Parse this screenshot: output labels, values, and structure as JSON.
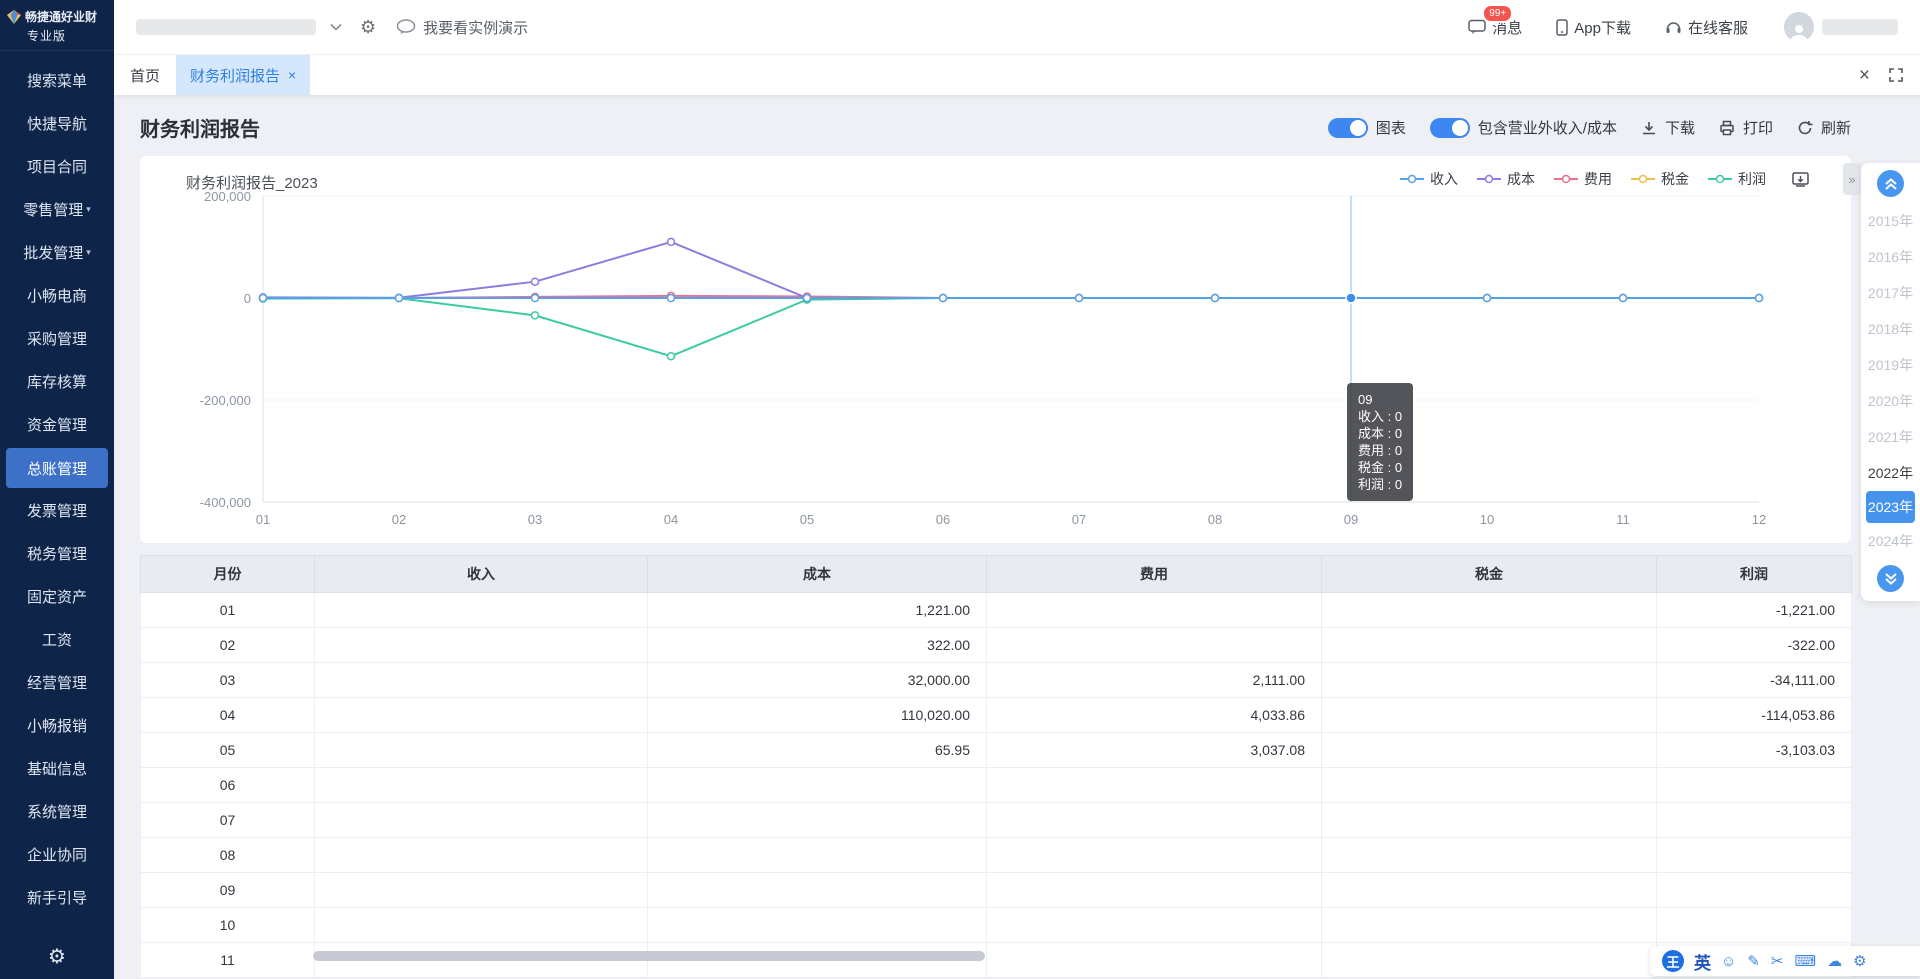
{
  "sidebar": {
    "logo_title": "畅捷通好业财",
    "logo_subtitle": "专业版",
    "items": [
      {
        "label": "搜索菜单"
      },
      {
        "label": "快捷导航"
      },
      {
        "label": "项目合同"
      },
      {
        "label": "零售管理",
        "arrow": true
      },
      {
        "label": "批发管理",
        "arrow": true
      },
      {
        "label": "小畅电商"
      },
      {
        "label": "采购管理"
      },
      {
        "label": "库存核算"
      },
      {
        "label": "资金管理"
      },
      {
        "label": "总账管理",
        "active": true
      },
      {
        "label": "发票管理"
      },
      {
        "label": "税务管理"
      },
      {
        "label": "固定资产"
      },
      {
        "label": "工资"
      },
      {
        "label": "经营管理"
      },
      {
        "label": "小畅报销"
      },
      {
        "label": "基础信息"
      },
      {
        "label": "系统管理"
      },
      {
        "label": "企业协同"
      },
      {
        "label": "新手引导"
      }
    ]
  },
  "topbar": {
    "demo_text": "我要看实例演示",
    "messages_label": "消息",
    "messages_badge": "99+",
    "app_download_label": "App下载",
    "support_label": "在线客服"
  },
  "tabs": {
    "home": "首页",
    "active": "财务利润报告",
    "close_glyph": "×"
  },
  "page": {
    "title": "财务利润报告"
  },
  "controls": {
    "chart_toggle_label": "图表",
    "chart_toggle_on": true,
    "include_toggle_label": "包含营业外收入/成本",
    "include_toggle_on": true,
    "download_label": "下载",
    "print_label": "打印",
    "refresh_label": "刷新"
  },
  "chart_data": {
    "type": "line",
    "title": "财务利润报告_2023",
    "x": [
      "01",
      "02",
      "03",
      "04",
      "05",
      "06",
      "07",
      "08",
      "09",
      "10",
      "11",
      "12"
    ],
    "ylim": [
      -400000,
      200000
    ],
    "yticks": [
      {
        "value": 200000,
        "label": "200,000"
      },
      {
        "value": 0,
        "label": "0"
      },
      {
        "value": -200000,
        "label": "-200,000"
      },
      {
        "value": -400000,
        "label": "-400,000"
      }
    ],
    "grid": true,
    "legend_position": "top-right",
    "series": [
      {
        "name": "收入",
        "color": "#55a2e6",
        "values": [
          0,
          0,
          0,
          0,
          0,
          0,
          0,
          0,
          0,
          0,
          0,
          0
        ]
      },
      {
        "name": "成本",
        "color": "#8c7ce0",
        "values": [
          1221,
          322,
          32000,
          110020,
          65.95,
          0,
          0,
          0,
          0,
          0,
          0,
          0
        ]
      },
      {
        "name": "费用",
        "color": "#e8718d",
        "values": [
          0,
          0,
          2111,
          4033.86,
          3037.08,
          0,
          0,
          0,
          0,
          0,
          0,
          0
        ]
      },
      {
        "name": "税金",
        "color": "#f0c04e",
        "values": [
          0,
          0,
          0,
          0,
          0,
          0,
          0,
          0,
          0,
          0,
          0,
          0
        ]
      },
      {
        "name": "利润",
        "color": "#3bcba2",
        "values": [
          -1221,
          -322,
          -34111,
          -114053.86,
          -3103.03,
          0,
          0,
          0,
          0,
          0,
          0,
          0
        ]
      }
    ],
    "tooltip": {
      "month": "09",
      "index": 8,
      "lines": [
        "收入 : 0",
        "成本 : 0",
        "费用 : 0",
        "税金 : 0",
        "利润 : 0"
      ]
    }
  },
  "year_panel": {
    "years": [
      {
        "label": "2015年"
      },
      {
        "label": "2016年"
      },
      {
        "label": "2017年"
      },
      {
        "label": "2018年"
      },
      {
        "label": "2019年"
      },
      {
        "label": "2020年"
      },
      {
        "label": "2021年"
      },
      {
        "label": "2022年",
        "emphasis": true
      },
      {
        "label": "2023年",
        "selected": true
      },
      {
        "label": "2024年"
      }
    ]
  },
  "table": {
    "headers": [
      "月份",
      "收入",
      "成本",
      "费用",
      "税金",
      "利润"
    ],
    "rows": [
      [
        "01",
        "",
        "1,221.00",
        "",
        "",
        "-1,221.00"
      ],
      [
        "02",
        "",
        "322.00",
        "",
        "",
        "-322.00"
      ],
      [
        "03",
        "",
        "32,000.00",
        "2,111.00",
        "",
        "-34,111.00"
      ],
      [
        "04",
        "",
        "110,020.00",
        "4,033.86",
        "",
        "-114,053.86"
      ],
      [
        "05",
        "",
        "65.95",
        "3,037.08",
        "",
        "-3,103.03"
      ],
      [
        "06",
        "",
        "",
        "",
        "",
        ""
      ],
      [
        "07",
        "",
        "",
        "",
        "",
        ""
      ],
      [
        "08",
        "",
        "",
        "",
        "",
        ""
      ],
      [
        "09",
        "",
        "",
        "",
        "",
        ""
      ],
      [
        "10",
        "",
        "",
        "",
        "",
        ""
      ],
      [
        "11",
        "",
        "",
        "",
        "",
        ""
      ]
    ]
  },
  "ime_bar": {
    "logo": "王",
    "lang": "英",
    "icons": [
      {
        "name": "smiley-icon",
        "glyph": "☺"
      },
      {
        "name": "pen-icon",
        "glyph": "✎"
      },
      {
        "name": "scissors-icon",
        "glyph": "✂"
      },
      {
        "name": "keyboard-icon",
        "glyph": "⌨"
      },
      {
        "name": "cloud-icon",
        "glyph": "☁"
      },
      {
        "name": "settings-icon",
        "glyph": "⚙"
      }
    ]
  }
}
